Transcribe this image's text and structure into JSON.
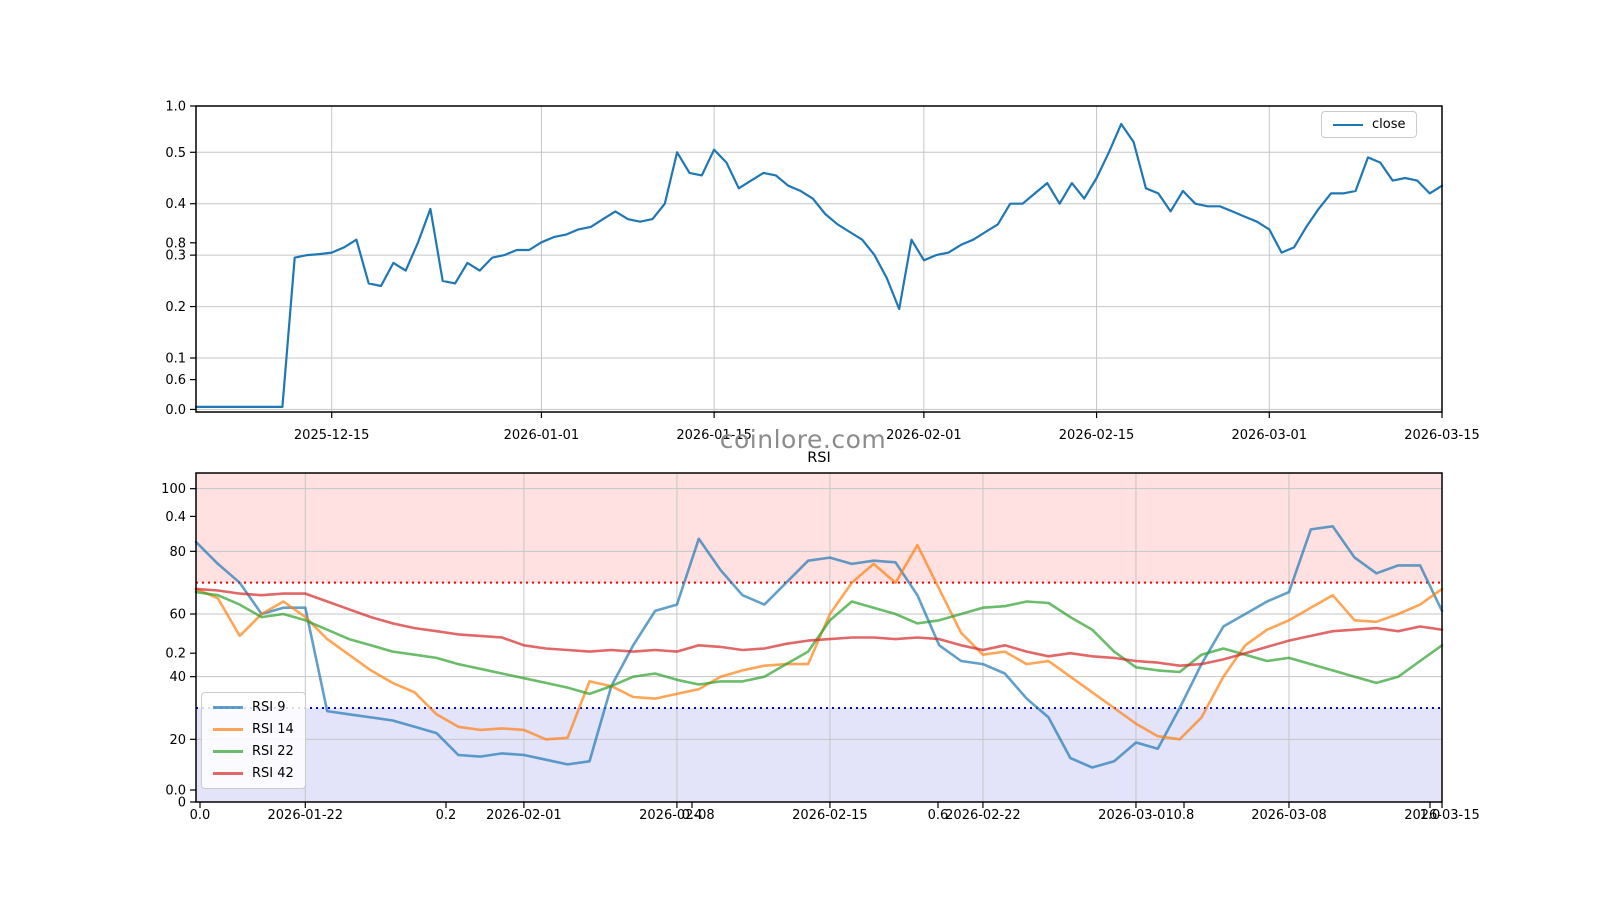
{
  "watermark": "coinlore.com",
  "overlay_axis": {
    "x_tick_labels": [
      "0.0",
      "0.2",
      "0.4",
      "0.6",
      "0.8",
      "1.0"
    ],
    "y_tick_labels": [
      "1.0",
      "0.8",
      "0.6",
      "0.4",
      "0.2",
      "0.0"
    ]
  },
  "chart_data": [
    {
      "type": "line",
      "title": "",
      "xlabel": "",
      "ylabel": "",
      "x_start": "2025-12-04",
      "x_end": "2026-03-15",
      "x_tick_labels": [
        "2025-12-15",
        "2026-01-01",
        "2026-01-15",
        "2026-02-01",
        "2026-02-15",
        "2026-03-01",
        "2026-03-15"
      ],
      "x_tick_indices": [
        11,
        28,
        42,
        59,
        73,
        87,
        101
      ],
      "y_ticks": [
        0,
        0.1,
        0.2,
        0.3,
        0.4,
        0.5
      ],
      "y_tick_labels": [
        "0.0",
        "0.1",
        "0.2",
        "0.3",
        "0.4",
        "0.5"
      ],
      "ylim": [
        -0.005,
        0.59
      ],
      "grid": true,
      "legend_position": "upper right",
      "series": [
        {
          "name": "close",
          "color": "#1f77b4",
          "opacity": 1,
          "width": 2.2,
          "values": [
            0.005,
            0.005,
            0.005,
            0.005,
            0.005,
            0.005,
            0.005,
            0.005,
            0.295,
            0.3,
            0.302,
            0.305,
            0.315,
            0.33,
            0.245,
            0.24,
            0.285,
            0.27,
            0.325,
            0.39,
            0.25,
            0.245,
            0.285,
            0.27,
            0.295,
            0.3,
            0.31,
            0.31,
            0.325,
            0.335,
            0.34,
            0.35,
            0.355,
            0.37,
            0.385,
            0.37,
            0.365,
            0.37,
            0.4,
            0.5,
            0.46,
            0.455,
            0.505,
            0.48,
            0.43,
            0.445,
            0.46,
            0.455,
            0.435,
            0.425,
            0.41,
            0.38,
            0.36,
            0.345,
            0.33,
            0.3,
            0.255,
            0.195,
            0.33,
            0.29,
            0.3,
            0.305,
            0.32,
            0.33,
            0.345,
            0.36,
            0.4,
            0.4,
            0.42,
            0.44,
            0.4,
            0.44,
            0.41,
            0.45,
            0.5,
            0.555,
            0.52,
            0.43,
            0.42,
            0.385,
            0.425,
            0.4,
            0.395,
            0.395,
            0.385,
            0.375,
            0.365,
            0.35,
            0.305,
            0.315,
            0.355,
            0.39,
            0.42,
            0.42,
            0.425,
            0.49,
            0.48,
            0.445,
            0.45,
            0.445,
            0.42,
            0.435
          ]
        }
      ]
    },
    {
      "type": "line",
      "title": "RSI",
      "xlabel": "",
      "ylabel": "",
      "x_start": "2026-01-17",
      "x_end": "2026-03-15",
      "x_tick_labels": [
        "2026-01-22",
        "2026-02-01",
        "2026-02-08",
        "2026-02-15",
        "2026-02-22",
        "2026-03-01",
        "2026-03-08",
        "2026-03-15"
      ],
      "x_tick_indices": [
        5,
        15,
        22,
        29,
        36,
        43,
        50,
        57
      ],
      "y_ticks": [
        0,
        20,
        40,
        60,
        80,
        100
      ],
      "y_tick_labels": [
        "0",
        "20",
        "40",
        "60",
        "80",
        "100"
      ],
      "ylim": [
        0,
        105
      ],
      "grid": true,
      "legend_position": "lower left",
      "bands": [
        {
          "name": "overbought-band",
          "from": 70,
          "to": 105,
          "color": "#ff1414",
          "opacity": 0.13
        },
        {
          "name": "oversold-band",
          "from": 0,
          "to": 30,
          "color": "#2828d7",
          "opacity": 0.13
        }
      ],
      "hlines": [
        {
          "name": "overbought-threshold",
          "y": 70,
          "color": "#f00000"
        },
        {
          "name": "oversold-threshold",
          "y": 30,
          "color": "#0000dd"
        }
      ],
      "series": [
        {
          "name": "RSI 9",
          "color": "#1f77b4",
          "opacity": 0.7,
          "width": 2.6,
          "values": [
            83,
            76,
            70,
            60,
            62,
            62,
            29,
            28,
            27,
            26,
            24,
            22,
            15,
            14.5,
            15.5,
            15,
            13.5,
            12,
            13,
            37,
            50,
            61,
            63,
            84,
            74,
            66,
            63,
            70,
            77,
            78,
            76,
            77,
            76.5,
            66,
            50,
            45,
            44,
            41,
            33,
            27,
            14,
            11,
            13,
            19,
            17,
            30,
            44,
            56,
            60,
            64,
            67,
            87,
            88,
            78,
            73,
            75.5,
            75.5,
            61
          ]
        },
        {
          "name": "RSI 14",
          "color": "#ff7f0e",
          "opacity": 0.7,
          "width": 2.6,
          "values": [
            68,
            65,
            53,
            60,
            64,
            59,
            52,
            47,
            42,
            38,
            35,
            28,
            24,
            23,
            23.5,
            23,
            20,
            20.5,
            38.5,
            37,
            33.5,
            33,
            34.5,
            36,
            40,
            42,
            43.5,
            44,
            44,
            60,
            70,
            76,
            70,
            82,
            68,
            54,
            47,
            48,
            44,
            45,
            40,
            35,
            30,
            25,
            21,
            20,
            27,
            40,
            50,
            55,
            58,
            62,
            66,
            58,
            57.5,
            60,
            63,
            68
          ]
        },
        {
          "name": "RSI 22",
          "color": "#2ca02c",
          "opacity": 0.7,
          "width": 2.6,
          "values": [
            67,
            66,
            63,
            59,
            60,
            58,
            55,
            52,
            50,
            48,
            47,
            46,
            44,
            42.5,
            41,
            39.5,
            38,
            36.5,
            34.5,
            37,
            40,
            41,
            39,
            37.5,
            38.5,
            38.5,
            40,
            44,
            48,
            58,
            64,
            62,
            60,
            57,
            58,
            60,
            62,
            62.5,
            64,
            63.5,
            59,
            55,
            48,
            43,
            42,
            41.5,
            47,
            49,
            47,
            45,
            46,
            44,
            42,
            40,
            38,
            40,
            45,
            50
          ]
        },
        {
          "name": "RSI 42",
          "color": "#d62728",
          "opacity": 0.7,
          "width": 2.6,
          "values": [
            68,
            67.5,
            66.5,
            66,
            66.5,
            66.5,
            64,
            61.5,
            59,
            57,
            55.5,
            54.5,
            53.5,
            53,
            52.5,
            50,
            49,
            48.5,
            48,
            48.5,
            48,
            48.5,
            48,
            50,
            49.5,
            48.5,
            49,
            50.5,
            51.5,
            52,
            52.5,
            52.5,
            52,
            52.5,
            52,
            50,
            48.5,
            50,
            48,
            46.5,
            47.5,
            46.5,
            46,
            45,
            44.5,
            43.5,
            44,
            45.5,
            47.5,
            49.5,
            51.5,
            53,
            54.5,
            55,
            55.5,
            54.5,
            56,
            55
          ]
        }
      ]
    }
  ]
}
